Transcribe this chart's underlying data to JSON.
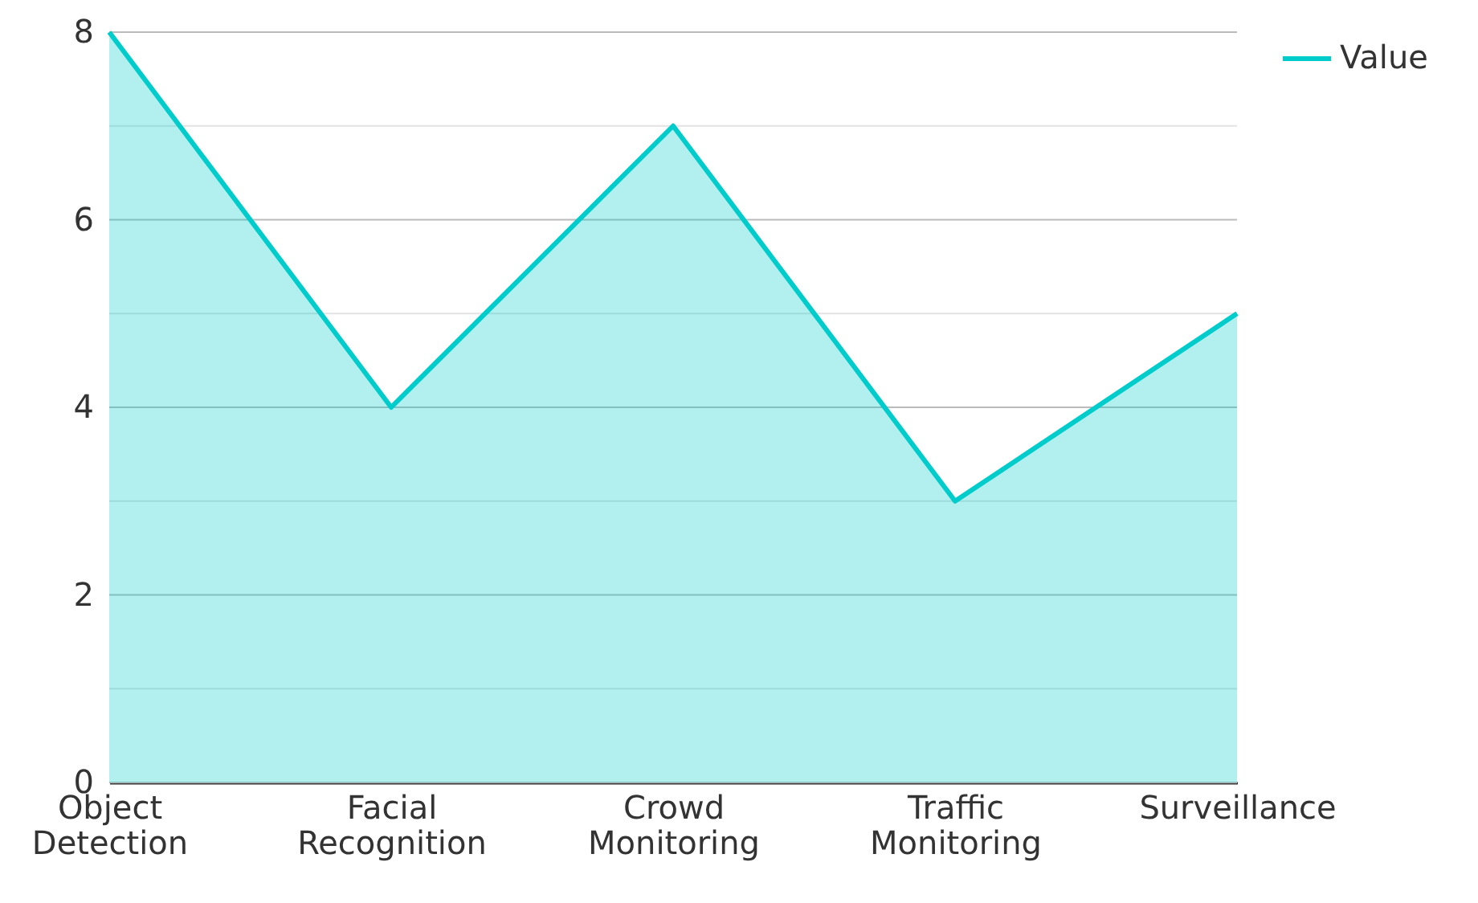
{
  "chart_data": {
    "type": "area",
    "categories": [
      "Object Detection",
      "Facial Recognition",
      "Crowd Monitoring",
      "Traffic Monitoring",
      "Surveillance"
    ],
    "series": [
      {
        "name": "Value",
        "color": "#00cccc",
        "values": [
          8,
          4,
          7,
          3,
          5
        ]
      }
    ],
    "ylim": [
      0,
      8
    ],
    "yticks": [
      0,
      {
        "value": 1,
        "label": null
      },
      2,
      {
        "value": 3,
        "label": null
      },
      4,
      {
        "value": 5,
        "label": null
      },
      6,
      {
        "value": 7,
        "label": null
      },
      8
    ],
    "grid": "y",
    "legend": "top right",
    "marker": "none",
    "line_style": "solid"
  }
}
